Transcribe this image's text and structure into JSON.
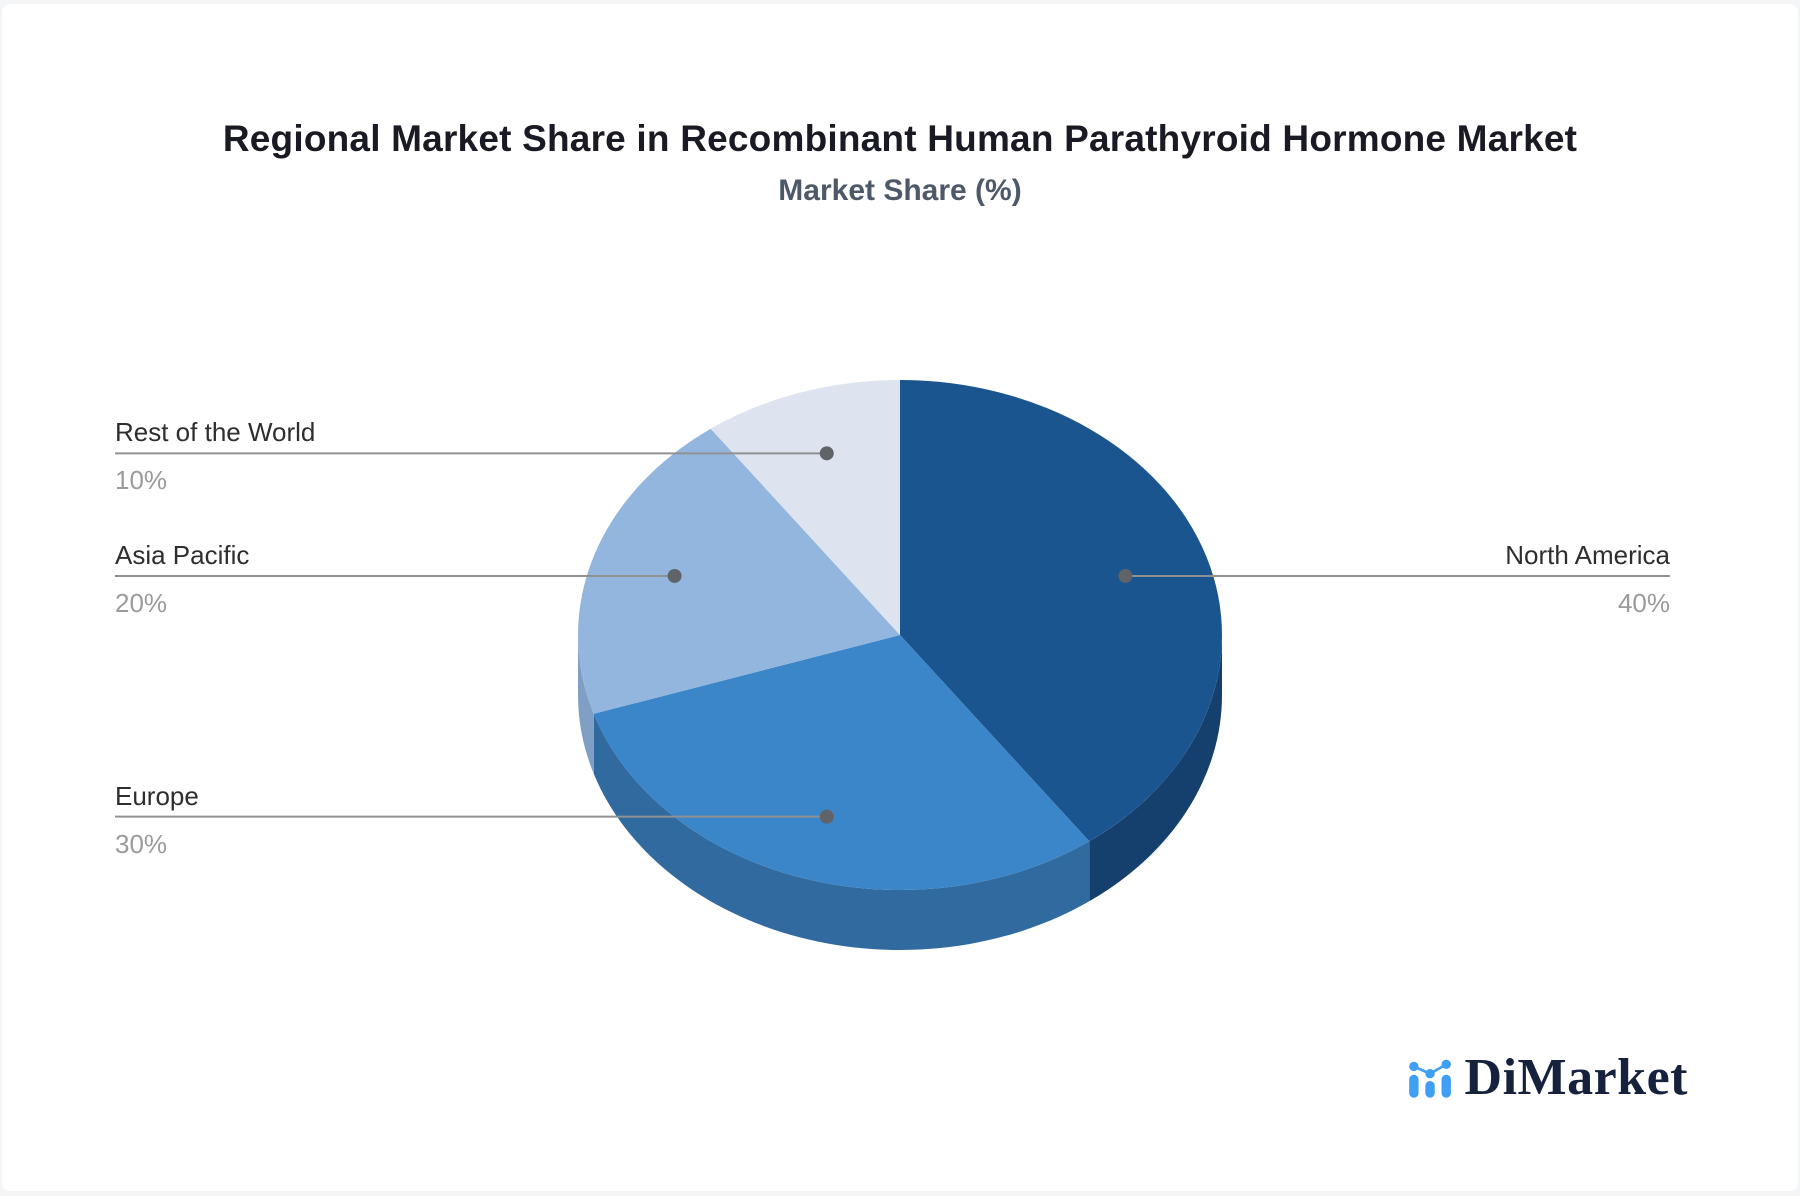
{
  "header": {
    "title": "Regional Market Share in Recombinant Human Parathyroid Hormone Market",
    "subtitle": "Market Share (%)"
  },
  "chart_data": {
    "type": "pie",
    "style": "pie-3d",
    "title": "Regional Market Share in Recombinant Human Parathyroid Hormone Market",
    "subtitle": "Market Share (%)",
    "unit": "%",
    "start_angle_deg": 0,
    "direction": "clockwise",
    "legend_position": "leader-lines",
    "slices": [
      {
        "label": "North America",
        "value": 40,
        "pct_display": "40%",
        "color": "#1b5590",
        "side_color": "#153f6c"
      },
      {
        "label": "Europe",
        "value": 30,
        "pct_display": "30%",
        "color": "#3a86c8",
        "side_color": "#316a9e"
      },
      {
        "label": "Asia Pacific",
        "value": 20,
        "pct_display": "20%",
        "color": "#92b6dd",
        "side_color": "#7f9fc4"
      },
      {
        "label": "Rest of the World",
        "value": 10,
        "pct_display": "10%",
        "color": "#dde4ef",
        "side_color": "#c3cede"
      }
    ],
    "label_line_color": "#8f9193",
    "dot_color": "#606468",
    "label_text_color": "#2e2e2e",
    "pct_text_color": "#9b9b9b"
  },
  "branding": {
    "logo_text": "DiMarket",
    "logo_text_color": "#16223d",
    "logo_icon": "bar-chart-with-trend-dots",
    "logo_icon_color": "#3f9ff4"
  }
}
